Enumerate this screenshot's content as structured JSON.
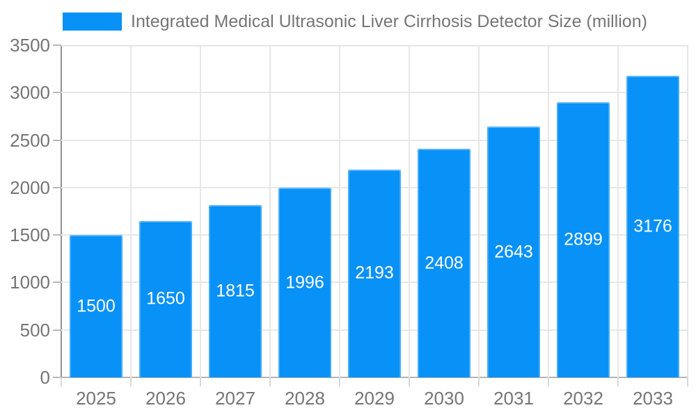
{
  "chart_data": {
    "type": "bar",
    "title": "Integrated Medical Ultrasonic Liver Cirrhosis Detector Size (million)",
    "categories": [
      "2025",
      "2026",
      "2027",
      "2028",
      "2029",
      "2030",
      "2031",
      "2032",
      "2033"
    ],
    "values": [
      1500,
      1650,
      1815,
      1996,
      2193,
      2408,
      2643,
      2899,
      3176
    ],
    "xlabel": "",
    "ylabel": "",
    "ylim": [
      0,
      3500
    ],
    "ytick_step": 500,
    "grid": true,
    "legend_position": "top-left",
    "value_labels": "inside-center",
    "colors": {
      "bar": "#0891f7",
      "value_label": "#ffffff",
      "axis_text": "#757575",
      "gridline": "#e7e7e7",
      "y_axis_line": "#8f8f8f",
      "x_axis_line": "#b3b3b3"
    }
  }
}
